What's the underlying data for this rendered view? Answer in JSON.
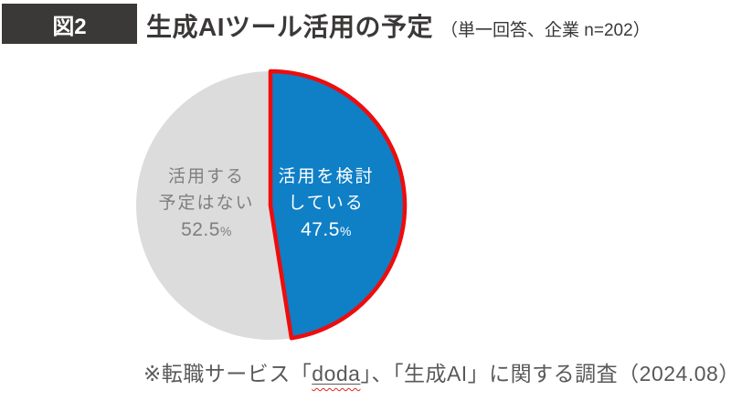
{
  "header": {
    "figure_tag": "図2",
    "title": "生成AIツール活用の予定",
    "subtitle": "（単一回答、企業 n=202）"
  },
  "chart_data": {
    "type": "pie",
    "title": "生成AIツール活用の予定",
    "subtitle": "単一回答、企業 n=202",
    "n": 202,
    "unit": "%",
    "start_angle_deg": -90,
    "direction": "clockwise",
    "legend": "none",
    "slices": [
      {
        "name": "considering",
        "label": "活用を検討している",
        "label_lines": [
          "活用を検討",
          "している"
        ],
        "value": 47.5,
        "value_label": "47.5",
        "unit": "%",
        "color": "#0F7FC6",
        "stroke_color": "#EE0C0C",
        "label_color": "#FFFFFF"
      },
      {
        "name": "no-plan",
        "label": "活用する予定はない",
        "label_lines": [
          "活用する",
          "予定はない"
        ],
        "value": 52.5,
        "value_label": "52.5",
        "unit": "%",
        "color": "#DCDCDC",
        "stroke_color": null,
        "label_color": "#7F7F7F"
      }
    ]
  },
  "footnote": {
    "prefix": "※転職サービス「",
    "doda": "doda",
    "suffix": "」、「生成AI」に関する調査（2024.08）"
  },
  "colors": {
    "background": "#FFFFFF",
    "tag_background": "#3B3838",
    "tag_text": "#FFFFFF",
    "title_text": "#3B3838",
    "footnote_text": "#595959",
    "doda_underline": "#595959",
    "doda_wavy": "#E0231C"
  }
}
